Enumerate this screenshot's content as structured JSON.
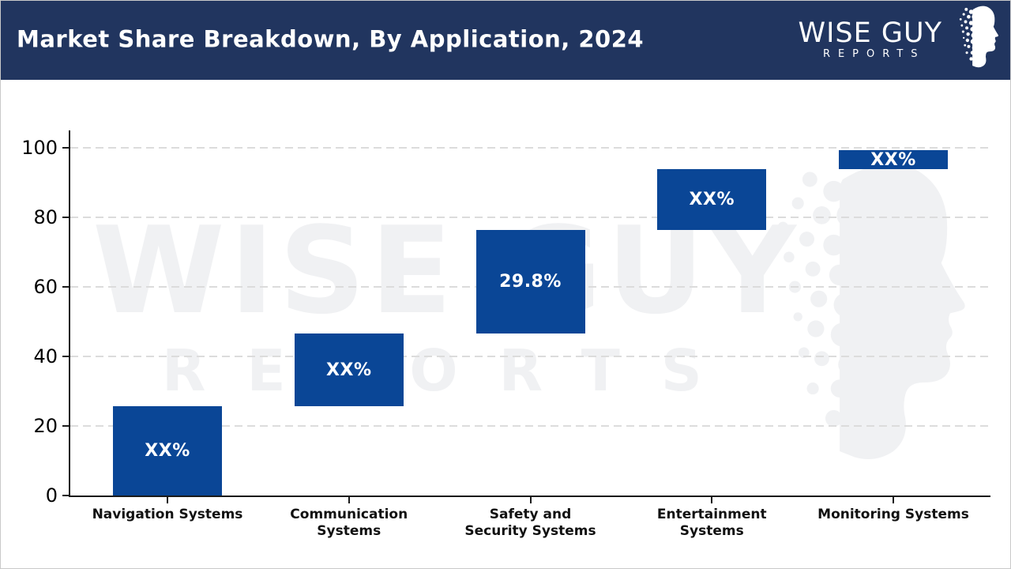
{
  "header": {
    "title": "Market Share Breakdown, By Application, 2024",
    "logo": {
      "line1": "WISE GUY",
      "line2": "REPORTS"
    }
  },
  "watermark": {
    "line1": "WISE GUY",
    "line2": "REPORTS"
  },
  "chart_data": {
    "type": "bar",
    "subtype": "waterfall",
    "title": "Market Share Breakdown, By Application, 2024",
    "categories": [
      "Navigation Systems",
      "Communication Systems",
      "Safety and Security Systems",
      "Entertainment Systems",
      "Monitoring Systems"
    ],
    "segments": [
      {
        "category": "Navigation Systems",
        "label_lines": [
          "Navigation Systems"
        ],
        "start": 0,
        "end": 25.6,
        "data_label": "XX%"
      },
      {
        "category": "Communication Systems",
        "label_lines": [
          "Communication",
          "Systems"
        ],
        "start": 25.6,
        "end": 46.6,
        "data_label": "XX%"
      },
      {
        "category": "Safety and Security Systems",
        "label_lines": [
          "Safety and",
          "Security Systems"
        ],
        "start": 46.6,
        "end": 76.4,
        "data_label": "29.8%",
        "value": 29.8
      },
      {
        "category": "Entertainment Systems",
        "label_lines": [
          "Entertainment",
          "Systems"
        ],
        "start": 76.4,
        "end": 93.8,
        "data_label": "XX%"
      },
      {
        "category": "Monitoring Systems",
        "label_lines": [
          "Monitoring Systems"
        ],
        "start": 93.8,
        "end": 99.3,
        "data_label": "XX%"
      }
    ],
    "y_ticks": [
      0,
      20,
      40,
      60,
      80,
      100
    ],
    "ylim": [
      0,
      105
    ],
    "grid": "horizontal-dashed",
    "legend": "none",
    "bar_color": "#0a4696",
    "data_label_color": "#ffffff"
  },
  "colors": {
    "header_bg": "#21355f",
    "bar": "#0a4696",
    "watermark": "#f0f1f3",
    "gridline": "#dcdcdc",
    "axis": "#1a1a1a",
    "page_border": "#c9c9c9"
  }
}
